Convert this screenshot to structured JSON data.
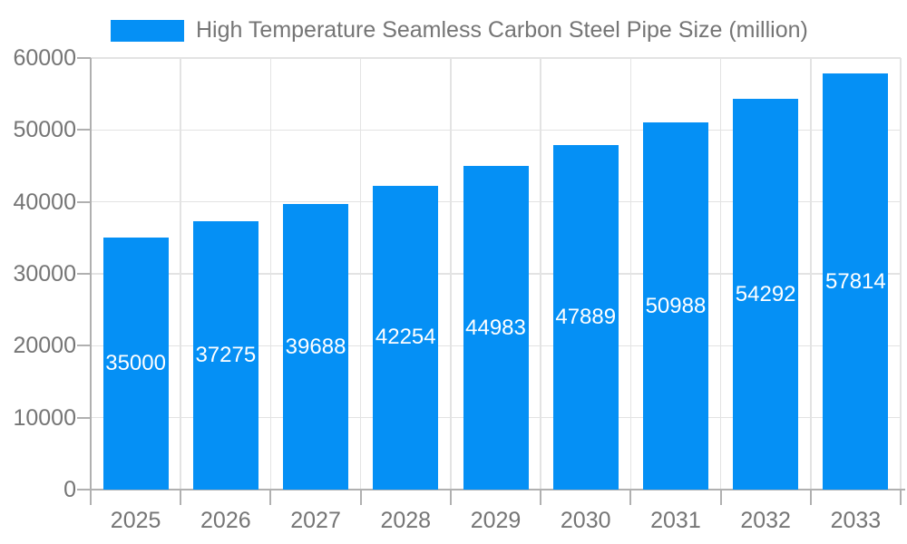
{
  "chart_data": {
    "type": "bar",
    "title": "High Temperature Seamless Carbon Steel Pipe Size (million)",
    "legend": {
      "label": "High Temperature Seamless Carbon Steel Pipe Size (million)",
      "position": "top"
    },
    "categories": [
      "2025",
      "2026",
      "2027",
      "2028",
      "2029",
      "2030",
      "2031",
      "2032",
      "2033"
    ],
    "values": [
      35000,
      37275,
      39688,
      42254,
      44983,
      47889,
      50988,
      54292,
      57814
    ],
    "bar_value_labels_visible": true,
    "xlabel": "",
    "ylabel": "",
    "ylim": [
      0,
      60000
    ],
    "yticks": [
      0,
      10000,
      20000,
      30000,
      40000,
      50000,
      60000
    ],
    "grid": true,
    "colors": {
      "bar": "#0590F5",
      "grid": "#e3e3e3",
      "axis": "#b0b0b0",
      "tick_label": "#757575",
      "value_label": "#ffffff",
      "background": "#ffffff"
    }
  }
}
